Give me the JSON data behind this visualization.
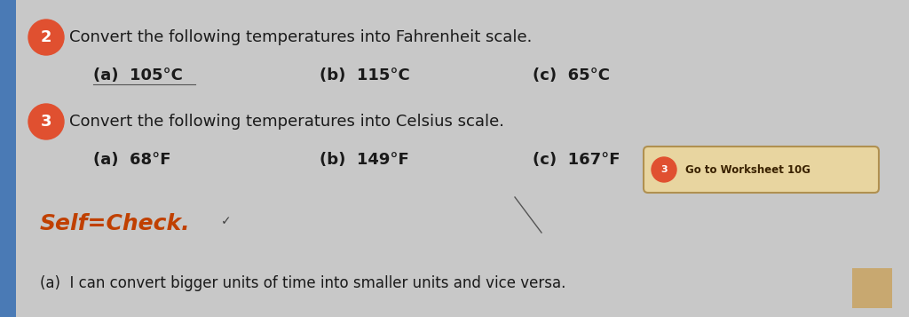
{
  "bg_color": "#c8c8c8",
  "left_bar_color": "#4a7ab5",
  "q2_circle_color": "#e05030",
  "q3_circle_color": "#e05030",
  "q2_number": "2",
  "q3_number": "3",
  "q2_text": "Convert the following temperatures into Fahrenheit scale.",
  "q3_text": "Convert the following temperatures into Celsius scale.",
  "q2_items": [
    "(a)  105°C",
    "(b)  115°C",
    "(c)  65°C"
  ],
  "q3_items": [
    "(a)  68°F",
    "(b)  149°F",
    "(c)  167°F"
  ],
  "self_check_text": "Self=Check.",
  "bottom_text": "(a)  I can convert bigger units of time into smaller units and vice versa.",
  "worksheet_badge": "Go to Worksheet 10G",
  "text_color": "#1a1a1a",
  "item_color": "#1a1a1a",
  "font_size_q": 13,
  "font_size_items": 13,
  "font_size_self": 18,
  "font_size_bottom": 12
}
